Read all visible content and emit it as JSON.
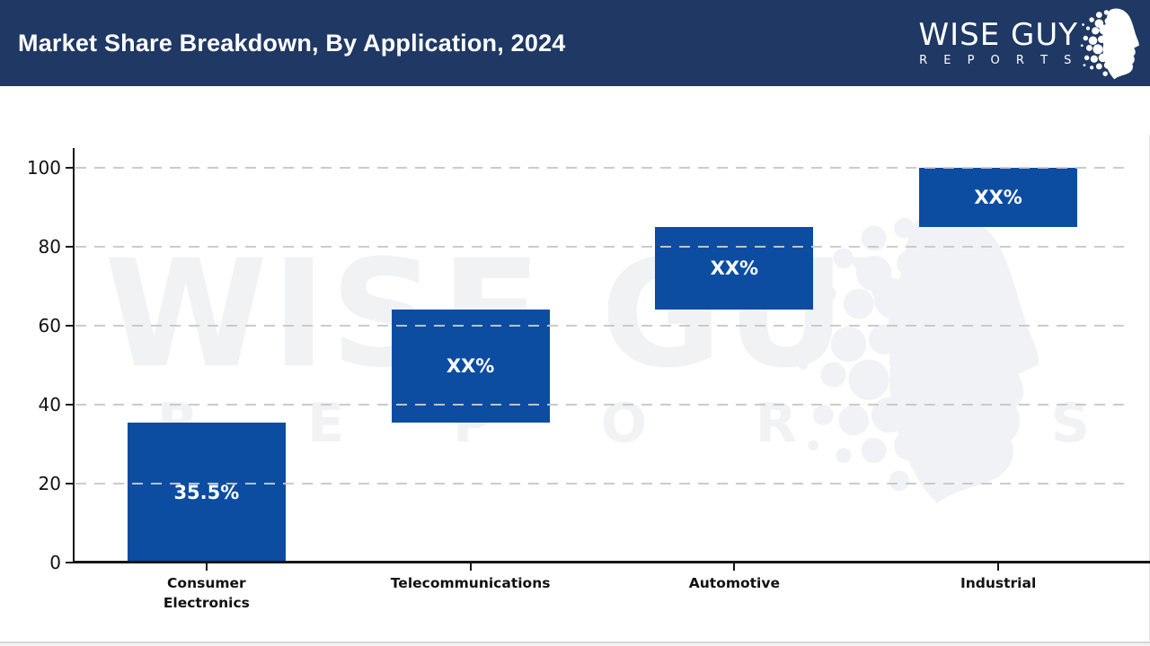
{
  "header": {
    "title": "Market Share Breakdown, By Application, 2024",
    "bg_color": "#1f3864"
  },
  "logo": {
    "name": "WISE GUY",
    "subtitle": "R E P O R T S"
  },
  "watermark": {
    "line1": "WISE GUY",
    "line2": "R E P O R T S"
  },
  "chart_data": {
    "type": "bar",
    "subtype": "stacked-waterfall",
    "title": "Market Share Breakdown, By Application, 2024",
    "categories": [
      "Consumer\nElectronics",
      "Telecommunications",
      "Automotive",
      "Industrial"
    ],
    "segments": [
      {
        "category": "Consumer Electronics",
        "start": 0,
        "end": 35.5,
        "label": "35.5%"
      },
      {
        "category": "Telecommunications",
        "start": 35.5,
        "end": 64,
        "label": "XX%"
      },
      {
        "category": "Automotive",
        "start": 64,
        "end": 85,
        "label": "XX%"
      },
      {
        "category": "Industrial",
        "start": 85,
        "end": 100,
        "label": "XX%"
      }
    ],
    "xlabel": "",
    "ylabel": "",
    "ylim": [
      0,
      100
    ],
    "y_ticks": [
      0,
      20,
      40,
      60,
      80,
      100
    ],
    "grid": "dashed horizontal, drawn over bars",
    "legend": "none",
    "bar_color": "#0c4da2",
    "bar_label_color": "#ffffff",
    "gridline_color": "#c8c8c8",
    "axis_color": "#161616",
    "watermark_color": "#f1f2f4"
  }
}
